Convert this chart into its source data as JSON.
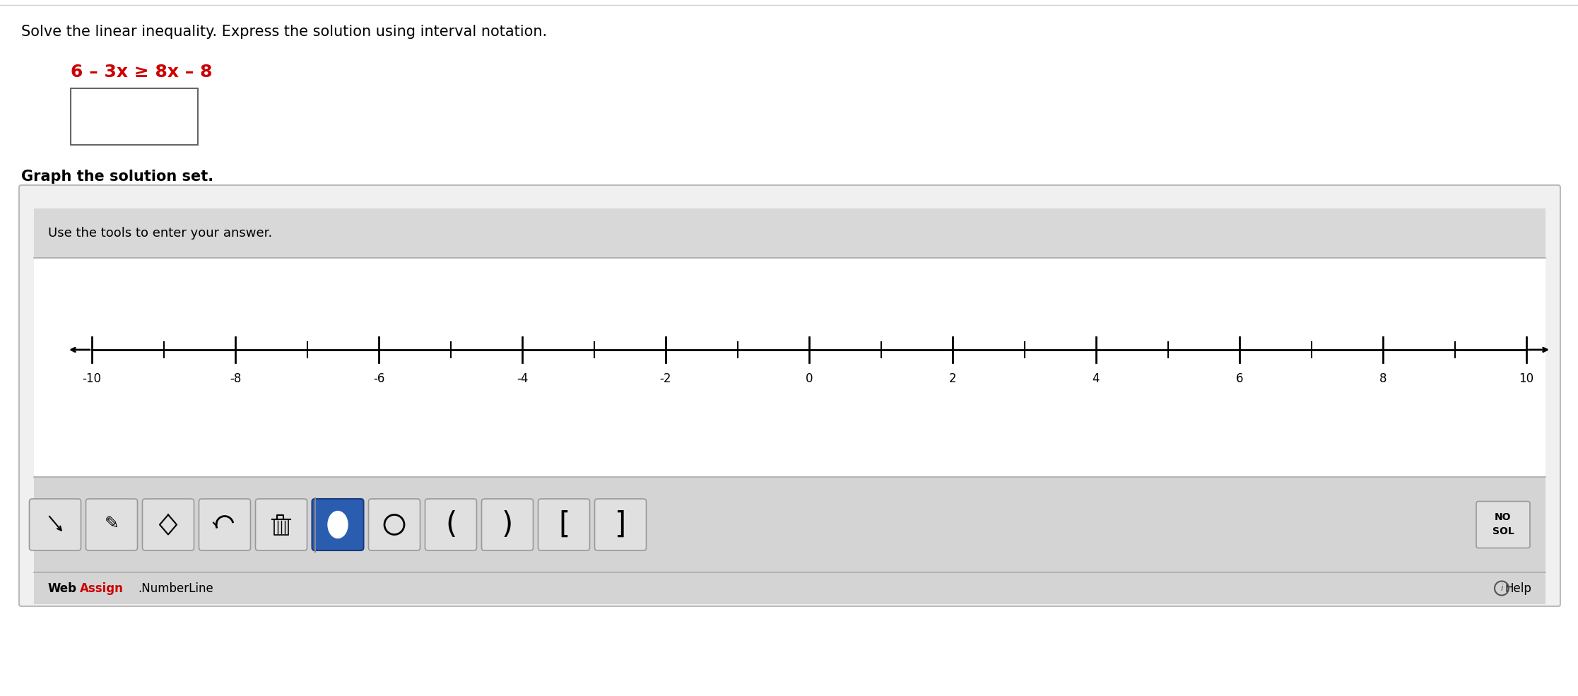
{
  "title_text": "Solve the linear inequality. Express the solution using interval notation.",
  "equation": "6 – 3x ≥ 8x – 8",
  "graph_label": "Graph the solution set.",
  "tools_text": "Use the tools to enter your answer.",
  "number_line_min": -10,
  "number_line_max": 10,
  "number_line_ticks": [
    -10,
    -8,
    -6,
    -4,
    -2,
    0,
    2,
    4,
    6,
    8,
    10
  ],
  "bg_color": "#ffffff",
  "equation_color": "#cc0000",
  "text_color": "#000000",
  "title_fontsize": 15,
  "equation_fontsize": 18,
  "label_fontsize": 15,
  "tools_fontsize": 13,
  "number_line_fontsize": 12,
  "icon_bg": "#e8e8e8",
  "toolbar_bg": "#d8d8d8",
  "outer_border": "#aaaaaa",
  "webassign_red": "#cc0000"
}
